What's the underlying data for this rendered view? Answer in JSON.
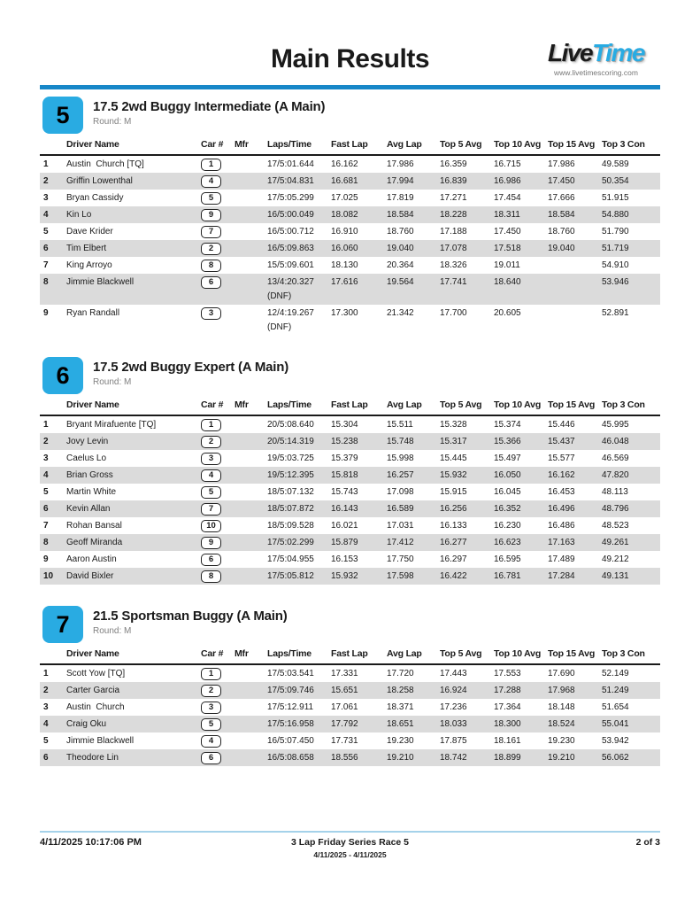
{
  "page": {
    "title": "Main Results",
    "logo": {
      "part1": "Live",
      "part2": "Time",
      "website": "www.livetimescoring.com"
    }
  },
  "table_columns": [
    "Driver Name",
    "Car #",
    "Mfr",
    "Laps/Time",
    "Fast Lap",
    "Avg Lap",
    "Top 5 Avg",
    "Top 10 Avg",
    "Top 15 Avg",
    "Top 3 Con"
  ],
  "sections": [
    {
      "number": "5",
      "title": "17.5 2wd Buggy Intermediate (A Main)",
      "round": "Round: M",
      "rows": [
        {
          "pos": "1",
          "driver": "Austin  Church [TQ]",
          "car": "1",
          "mfr": "",
          "laps": "17/5:01.644",
          "note": "",
          "fast": "16.162",
          "avg": "17.986",
          "t5": "16.359",
          "t10": "16.715",
          "t15": "17.986",
          "t3c": "49.589"
        },
        {
          "pos": "2",
          "driver": "Griffin Lowenthal",
          "car": "4",
          "mfr": "",
          "laps": "17/5:04.831",
          "note": "",
          "fast": "16.681",
          "avg": "17.994",
          "t5": "16.839",
          "t10": "16.986",
          "t15": "17.450",
          "t3c": "50.354"
        },
        {
          "pos": "3",
          "driver": "Bryan Cassidy",
          "car": "5",
          "mfr": "",
          "laps": "17/5:05.299",
          "note": "",
          "fast": "17.025",
          "avg": "17.819",
          "t5": "17.271",
          "t10": "17.454",
          "t15": "17.666",
          "t3c": "51.915"
        },
        {
          "pos": "4",
          "driver": "Kin Lo",
          "car": "9",
          "mfr": "",
          "laps": "16/5:00.049",
          "note": "",
          "fast": "18.082",
          "avg": "18.584",
          "t5": "18.228",
          "t10": "18.311",
          "t15": "18.584",
          "t3c": "54.880"
        },
        {
          "pos": "5",
          "driver": "Dave Krider",
          "car": "7",
          "mfr": "",
          "laps": "16/5:00.712",
          "note": "",
          "fast": "16.910",
          "avg": "18.760",
          "t5": "17.188",
          "t10": "17.450",
          "t15": "18.760",
          "t3c": "51.790"
        },
        {
          "pos": "6",
          "driver": "Tim Elbert",
          "car": "2",
          "mfr": "",
          "laps": "16/5:09.863",
          "note": "",
          "fast": "16.060",
          "avg": "19.040",
          "t5": "17.078",
          "t10": "17.518",
          "t15": "19.040",
          "t3c": "51.719"
        },
        {
          "pos": "7",
          "driver": "King Arroyo",
          "car": "8",
          "mfr": "",
          "laps": "15/5:09.601",
          "note": "",
          "fast": "18.130",
          "avg": "20.364",
          "t5": "18.326",
          "t10": "19.011",
          "t15": "",
          "t3c": "54.910"
        },
        {
          "pos": "8",
          "driver": "Jimmie Blackwell",
          "car": "6",
          "mfr": "",
          "laps": "13/4:20.327",
          "note": "(DNF)",
          "fast": "17.616",
          "avg": "19.564",
          "t5": "17.741",
          "t10": "18.640",
          "t15": "",
          "t3c": "53.946"
        },
        {
          "pos": "9",
          "driver": "Ryan Randall",
          "car": "3",
          "mfr": "",
          "laps": "12/4:19.267",
          "note": "(DNF)",
          "fast": "17.300",
          "avg": "21.342",
          "t5": "17.700",
          "t10": "20.605",
          "t15": "",
          "t3c": "52.891"
        }
      ]
    },
    {
      "number": "6",
      "title": "17.5 2wd Buggy Expert (A Main)",
      "round": "Round: M",
      "rows": [
        {
          "pos": "1",
          "driver": "Bryant Mirafuente [TQ]",
          "car": "1",
          "mfr": "",
          "laps": "20/5:08.640",
          "note": "",
          "fast": "15.304",
          "avg": "15.511",
          "t5": "15.328",
          "t10": "15.374",
          "t15": "15.446",
          "t3c": "45.995"
        },
        {
          "pos": "2",
          "driver": "Jovy Levin",
          "car": "2",
          "mfr": "",
          "laps": "20/5:14.319",
          "note": "",
          "fast": "15.238",
          "avg": "15.748",
          "t5": "15.317",
          "t10": "15.366",
          "t15": "15.437",
          "t3c": "46.048"
        },
        {
          "pos": "3",
          "driver": "Caelus Lo",
          "car": "3",
          "mfr": "",
          "laps": "19/5:03.725",
          "note": "",
          "fast": "15.379",
          "avg": "15.998",
          "t5": "15.445",
          "t10": "15.497",
          "t15": "15.577",
          "t3c": "46.569"
        },
        {
          "pos": "4",
          "driver": "Brian Gross",
          "car": "4",
          "mfr": "",
          "laps": "19/5:12.395",
          "note": "",
          "fast": "15.818",
          "avg": "16.257",
          "t5": "15.932",
          "t10": "16.050",
          "t15": "16.162",
          "t3c": "47.820"
        },
        {
          "pos": "5",
          "driver": "Martin White",
          "car": "5",
          "mfr": "",
          "laps": "18/5:07.132",
          "note": "",
          "fast": "15.743",
          "avg": "17.098",
          "t5": "15.915",
          "t10": "16.045",
          "t15": "16.453",
          "t3c": "48.113"
        },
        {
          "pos": "6",
          "driver": "Kevin Allan",
          "car": "7",
          "mfr": "",
          "laps": "18/5:07.872",
          "note": "",
          "fast": "16.143",
          "avg": "16.589",
          "t5": "16.256",
          "t10": "16.352",
          "t15": "16.496",
          "t3c": "48.796"
        },
        {
          "pos": "7",
          "driver": "Rohan Bansal",
          "car": "10",
          "mfr": "",
          "laps": "18/5:09.528",
          "note": "",
          "fast": "16.021",
          "avg": "17.031",
          "t5": "16.133",
          "t10": "16.230",
          "t15": "16.486",
          "t3c": "48.523"
        },
        {
          "pos": "8",
          "driver": "Geoff Miranda",
          "car": "9",
          "mfr": "",
          "laps": "17/5:02.299",
          "note": "",
          "fast": "15.879",
          "avg": "17.412",
          "t5": "16.277",
          "t10": "16.623",
          "t15": "17.163",
          "t3c": "49.261"
        },
        {
          "pos": "9",
          "driver": "Aaron Austin",
          "car": "6",
          "mfr": "",
          "laps": "17/5:04.955",
          "note": "",
          "fast": "16.153",
          "avg": "17.750",
          "t5": "16.297",
          "t10": "16.595",
          "t15": "17.489",
          "t3c": "49.212"
        },
        {
          "pos": "10",
          "driver": "David Bixler",
          "car": "8",
          "mfr": "",
          "laps": "17/5:05.812",
          "note": "",
          "fast": "15.932",
          "avg": "17.598",
          "t5": "16.422",
          "t10": "16.781",
          "t15": "17.284",
          "t3c": "49.131"
        }
      ]
    },
    {
      "number": "7",
      "title": "21.5 Sportsman Buggy (A Main)",
      "round": "Round: M",
      "rows": [
        {
          "pos": "1",
          "driver": "Scott Yow [TQ]",
          "car": "1",
          "mfr": "",
          "laps": "17/5:03.541",
          "note": "",
          "fast": "17.331",
          "avg": "17.720",
          "t5": "17.443",
          "t10": "17.553",
          "t15": "17.690",
          "t3c": "52.149"
        },
        {
          "pos": "2",
          "driver": "Carter Garcia",
          "car": "2",
          "mfr": "",
          "laps": "17/5:09.746",
          "note": "",
          "fast": "15.651",
          "avg": "18.258",
          "t5": "16.924",
          "t10": "17.288",
          "t15": "17.968",
          "t3c": "51.249"
        },
        {
          "pos": "3",
          "driver": "Austin  Church",
          "car": "3",
          "mfr": "",
          "laps": "17/5:12.911",
          "note": "",
          "fast": "17.061",
          "avg": "18.371",
          "t5": "17.236",
          "t10": "17.364",
          "t15": "18.148",
          "t3c": "51.654"
        },
        {
          "pos": "4",
          "driver": "Craig Oku",
          "car": "5",
          "mfr": "",
          "laps": "17/5:16.958",
          "note": "",
          "fast": "17.792",
          "avg": "18.651",
          "t5": "18.033",
          "t10": "18.300",
          "t15": "18.524",
          "t3c": "55.041"
        },
        {
          "pos": "5",
          "driver": "Jimmie Blackwell",
          "car": "4",
          "mfr": "",
          "laps": "16/5:07.450",
          "note": "",
          "fast": "17.731",
          "avg": "19.230",
          "t5": "17.875",
          "t10": "18.161",
          "t15": "19.230",
          "t3c": "53.942"
        },
        {
          "pos": "6",
          "driver": "Theodore Lin",
          "car": "6",
          "mfr": "",
          "laps": "16/5:08.658",
          "note": "",
          "fast": "18.556",
          "avg": "19.210",
          "t5": "18.742",
          "t10": "18.899",
          "t15": "19.210",
          "t3c": "56.062"
        }
      ]
    }
  ],
  "footer": {
    "printed": "4/11/2025 10:17:06 PM",
    "series": "3 Lap Friday Series Race 5",
    "date_range": "4/11/2025 - 4/11/2025",
    "page_number": "2 of 3"
  },
  "colors": {
    "accent_bar": "#1787C8",
    "badge": "#29ABE2",
    "stripe": "#DBDBDB",
    "footer_line": "#A5D2EA"
  }
}
